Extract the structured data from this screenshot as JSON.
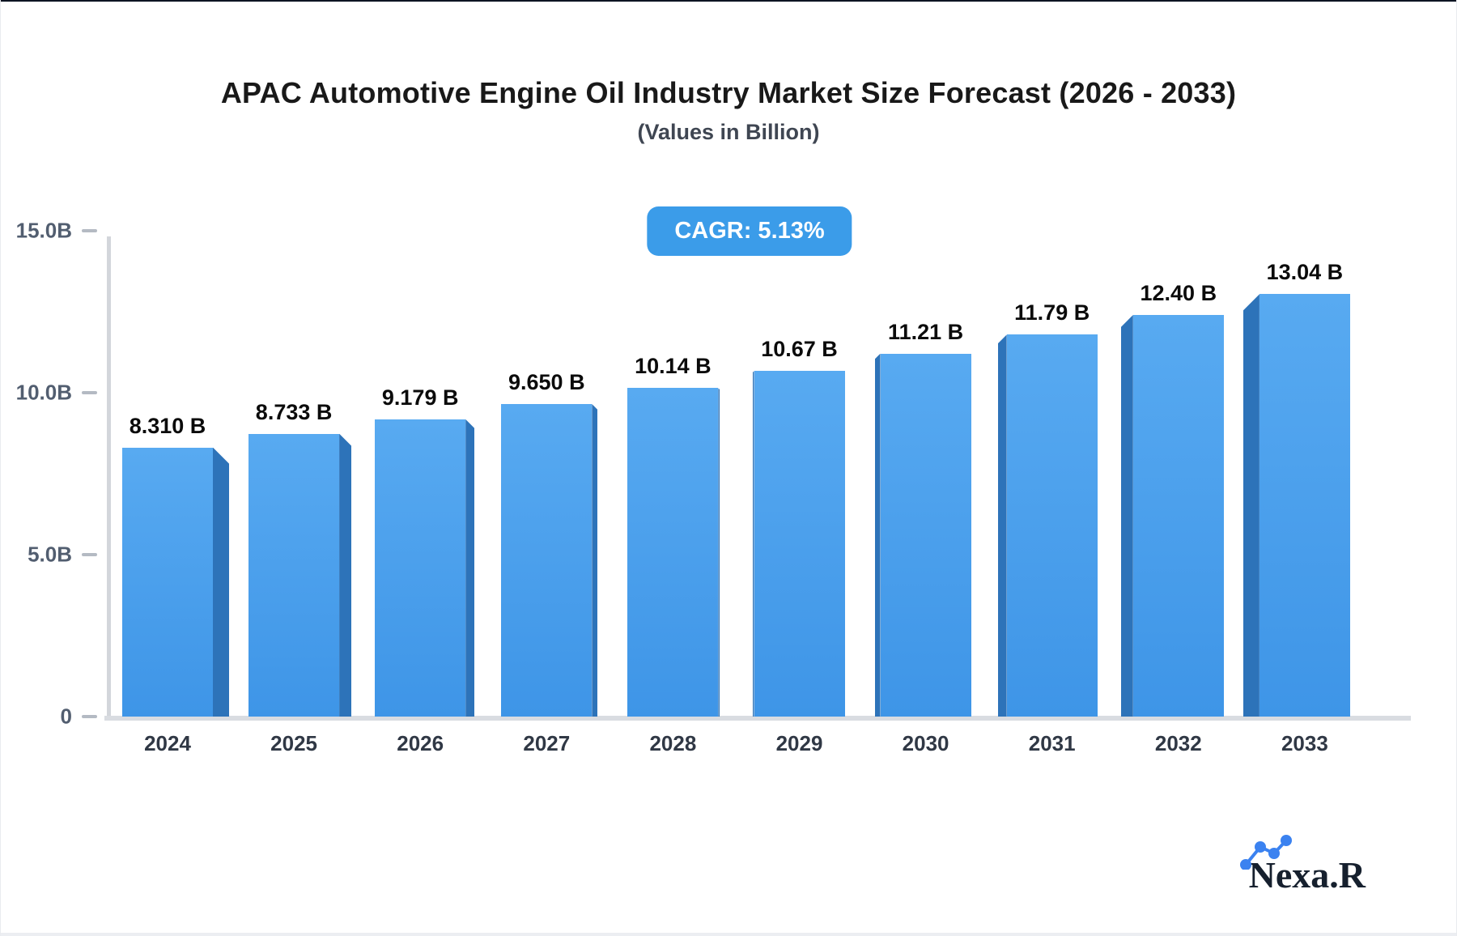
{
  "header": {
    "title": "APAC Automotive Engine Oil Industry Market Size Forecast (2026 - 2033)",
    "subtitle": "(Values in Billion)"
  },
  "badge": {
    "label": "CAGR: 5.13%",
    "bg": "#3b9ce9"
  },
  "chart_data": {
    "type": "bar",
    "title": "APAC Automotive Engine Oil Industry Market Size Forecast (2026 - 2033)",
    "subtitle": "(Values in Billion)",
    "cagr": "5.13%",
    "categories": [
      "2024",
      "2025",
      "2026",
      "2027",
      "2028",
      "2029",
      "2030",
      "2031",
      "2032",
      "2033"
    ],
    "values": [
      8.31,
      8.733,
      9.179,
      9.65,
      10.14,
      10.67,
      11.21,
      11.79,
      12.4,
      13.04
    ],
    "value_labels": [
      "8.310 B",
      "8.733 B",
      "9.179 B",
      "9.650 B",
      "10.14 B",
      "10.67 B",
      "11.21 B",
      "11.79 B",
      "12.40 B",
      "13.04 B"
    ],
    "xlabel": "",
    "ylabel": "",
    "ylim": [
      0,
      15
    ],
    "yticks": [
      {
        "label": "15.0B",
        "value": 15
      },
      {
        "label": "10.0B",
        "value": 10
      },
      {
        "label": "5.0B",
        "value": 5
      },
      {
        "label": "0",
        "value": 0
      }
    ],
    "grid": false,
    "legend": false,
    "bar_color_top": "#58aaf1",
    "bar_color_bottom": "#3e95e7",
    "bar_side_color": "#2d73b9",
    "style": "3d-perspective-bars"
  },
  "logo": {
    "text": "Nexa.R",
    "icon": "line-chart-icon",
    "icon_color": "#3b82f0"
  }
}
